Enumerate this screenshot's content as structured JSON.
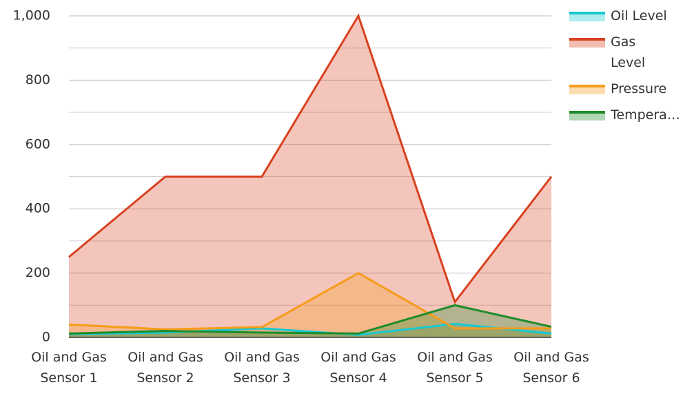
{
  "chart_data": {
    "type": "area",
    "categories": [
      "Oil and Gas Sensor 1",
      "Oil and Gas Sensor 2",
      "Oil and Gas Sensor 3",
      "Oil and Gas Sensor 4",
      "Oil and Gas Sensor 5",
      "Oil and Gas Sensor 6"
    ],
    "series": [
      {
        "name": "Oil Level",
        "color": "#17c8d0",
        "values": [
          10,
          15,
          28,
          8,
          42,
          12
        ]
      },
      {
        "name": "Gas Level",
        "color": "#d9401e",
        "values": [
          250,
          500,
          500,
          1000,
          110,
          500
        ]
      },
      {
        "name": "Pressure",
        "color": "#f59c1a",
        "values": [
          40,
          25,
          32,
          200,
          28,
          28
        ]
      },
      {
        "name": "Temperature",
        "color": "#1e8c2a",
        "values": [
          12,
          20,
          15,
          12,
          100,
          33
        ]
      }
    ],
    "ylim": [
      0,
      1000
    ],
    "yticks": [
      0,
      200,
      400,
      600,
      800,
      {
        "value": 1000,
        "label": "1,000"
      }
    ],
    "minor_yticks": [
      100,
      300,
      500,
      700,
      900
    ],
    "grid": true,
    "legend": "right"
  }
}
